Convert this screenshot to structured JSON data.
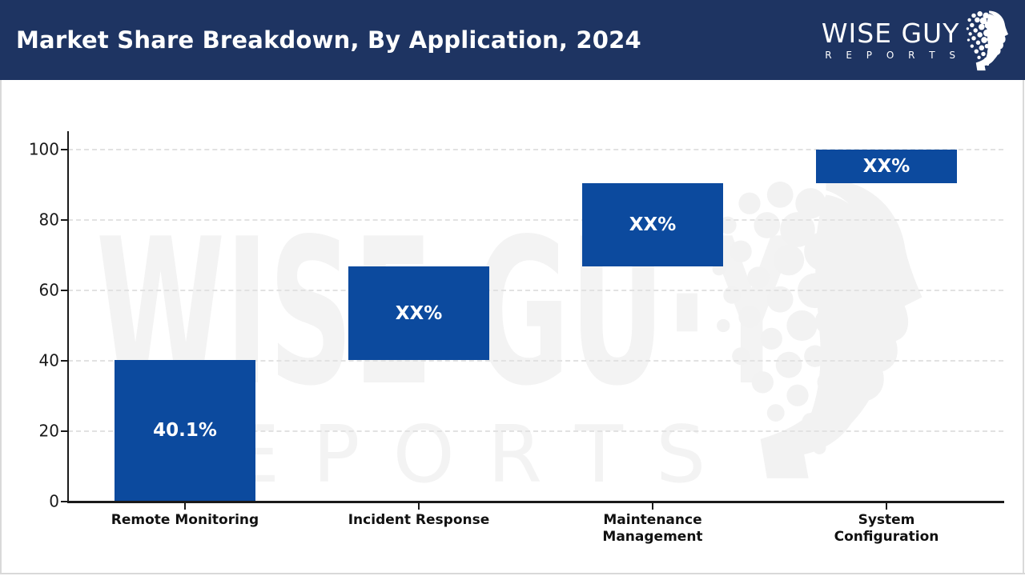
{
  "header": {
    "title": "Market Share Breakdown, By Application, 2024",
    "logo": {
      "name": "WISE GUY",
      "subtitle": "R E P O R T S",
      "icon": "dotted-head-profile"
    }
  },
  "watermark": {
    "line1": "WISE GU·Y",
    "line2": "R E P O R T S",
    "icon": "dotted-head-profile"
  },
  "chart_data": {
    "type": "bar",
    "subtype": "floating-waterfall-segments",
    "title": "Market Share Breakdown, By Application, 2024",
    "categories": [
      "Remote Monitoring",
      "Incident Response",
      "Maintenance Management",
      "System Configuration"
    ],
    "series": [
      {
        "name": "Market share (%)",
        "segments": [
          {
            "category": "Remote Monitoring",
            "start": 0,
            "end": 40.1,
            "label": "40.1%"
          },
          {
            "category": "Incident Response",
            "start": 40.1,
            "end": 66.7,
            "label": "XX%"
          },
          {
            "category": "Maintenance Management",
            "start": 66.7,
            "end": 90.5,
            "label": "XX%"
          },
          {
            "category": "System Configuration",
            "start": 90.5,
            "end": 100,
            "label": "XX%"
          }
        ]
      }
    ],
    "xlabel": "",
    "ylabel": "",
    "ylim": [
      0,
      100
    ],
    "yticks": [
      0,
      20,
      40,
      60,
      80,
      100
    ],
    "grid": "horizontal-dashed",
    "legend": "none",
    "bar_color": "#0c4a9e",
    "bar_label_color": "#ffffff"
  },
  "colors": {
    "header_bg": "#1e3462",
    "bar": "#0c4a9e",
    "grid": "#e2e2e2",
    "axis": "#1a1a1a",
    "watermark": "#f2f2f2",
    "frame": "#d9d9d9",
    "title_text": "#ffffff"
  }
}
